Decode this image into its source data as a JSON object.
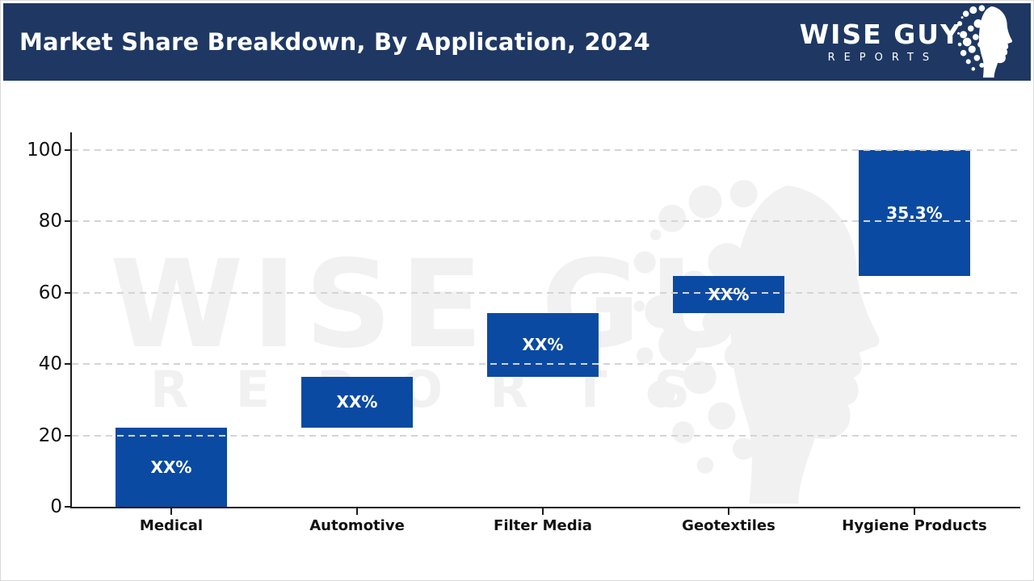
{
  "header": {
    "title": "Market Share Breakdown, By Application, 2024",
    "logo": {
      "name": "WISE GUY",
      "subtitle": "REPORTS"
    }
  },
  "watermark": {
    "line1": "WISE GUY",
    "line2": "REPORTS"
  },
  "colors": {
    "header_bg": "#1f3863",
    "bar": "#0b4aa2",
    "bar_label": "#ffffff",
    "gridline": "#d4d4d4",
    "axis": "#1a1a1a",
    "watermark": "#f1f1f2"
  },
  "chart_data": {
    "type": "bar",
    "subtype": "waterfall",
    "title": "Market Share Breakdown, By Application, 2024",
    "categories": [
      "Medical",
      "Automotive",
      "Filter Media",
      "Geotextiles",
      "Hygiene Products"
    ],
    "segments": [
      {
        "category": "Medical",
        "start": 0,
        "end": 22.1,
        "label": "XX%"
      },
      {
        "category": "Automotive",
        "start": 22.1,
        "end": 36.5,
        "label": "XX%"
      },
      {
        "category": "Filter Media",
        "start": 36.5,
        "end": 54.2,
        "label": "XX%"
      },
      {
        "category": "Geotextiles",
        "start": 54.2,
        "end": 64.7,
        "label": "XX%"
      },
      {
        "category": "Hygiene Products",
        "start": 64.7,
        "end": 100,
        "label": "35.3%"
      }
    ],
    "ylim": [
      0,
      100
    ],
    "yticks": [
      0,
      20,
      40,
      60,
      80,
      100
    ],
    "xlabel": "",
    "ylabel": "",
    "grid": "dashed-horizontal-over-bars",
    "legend": "none"
  }
}
